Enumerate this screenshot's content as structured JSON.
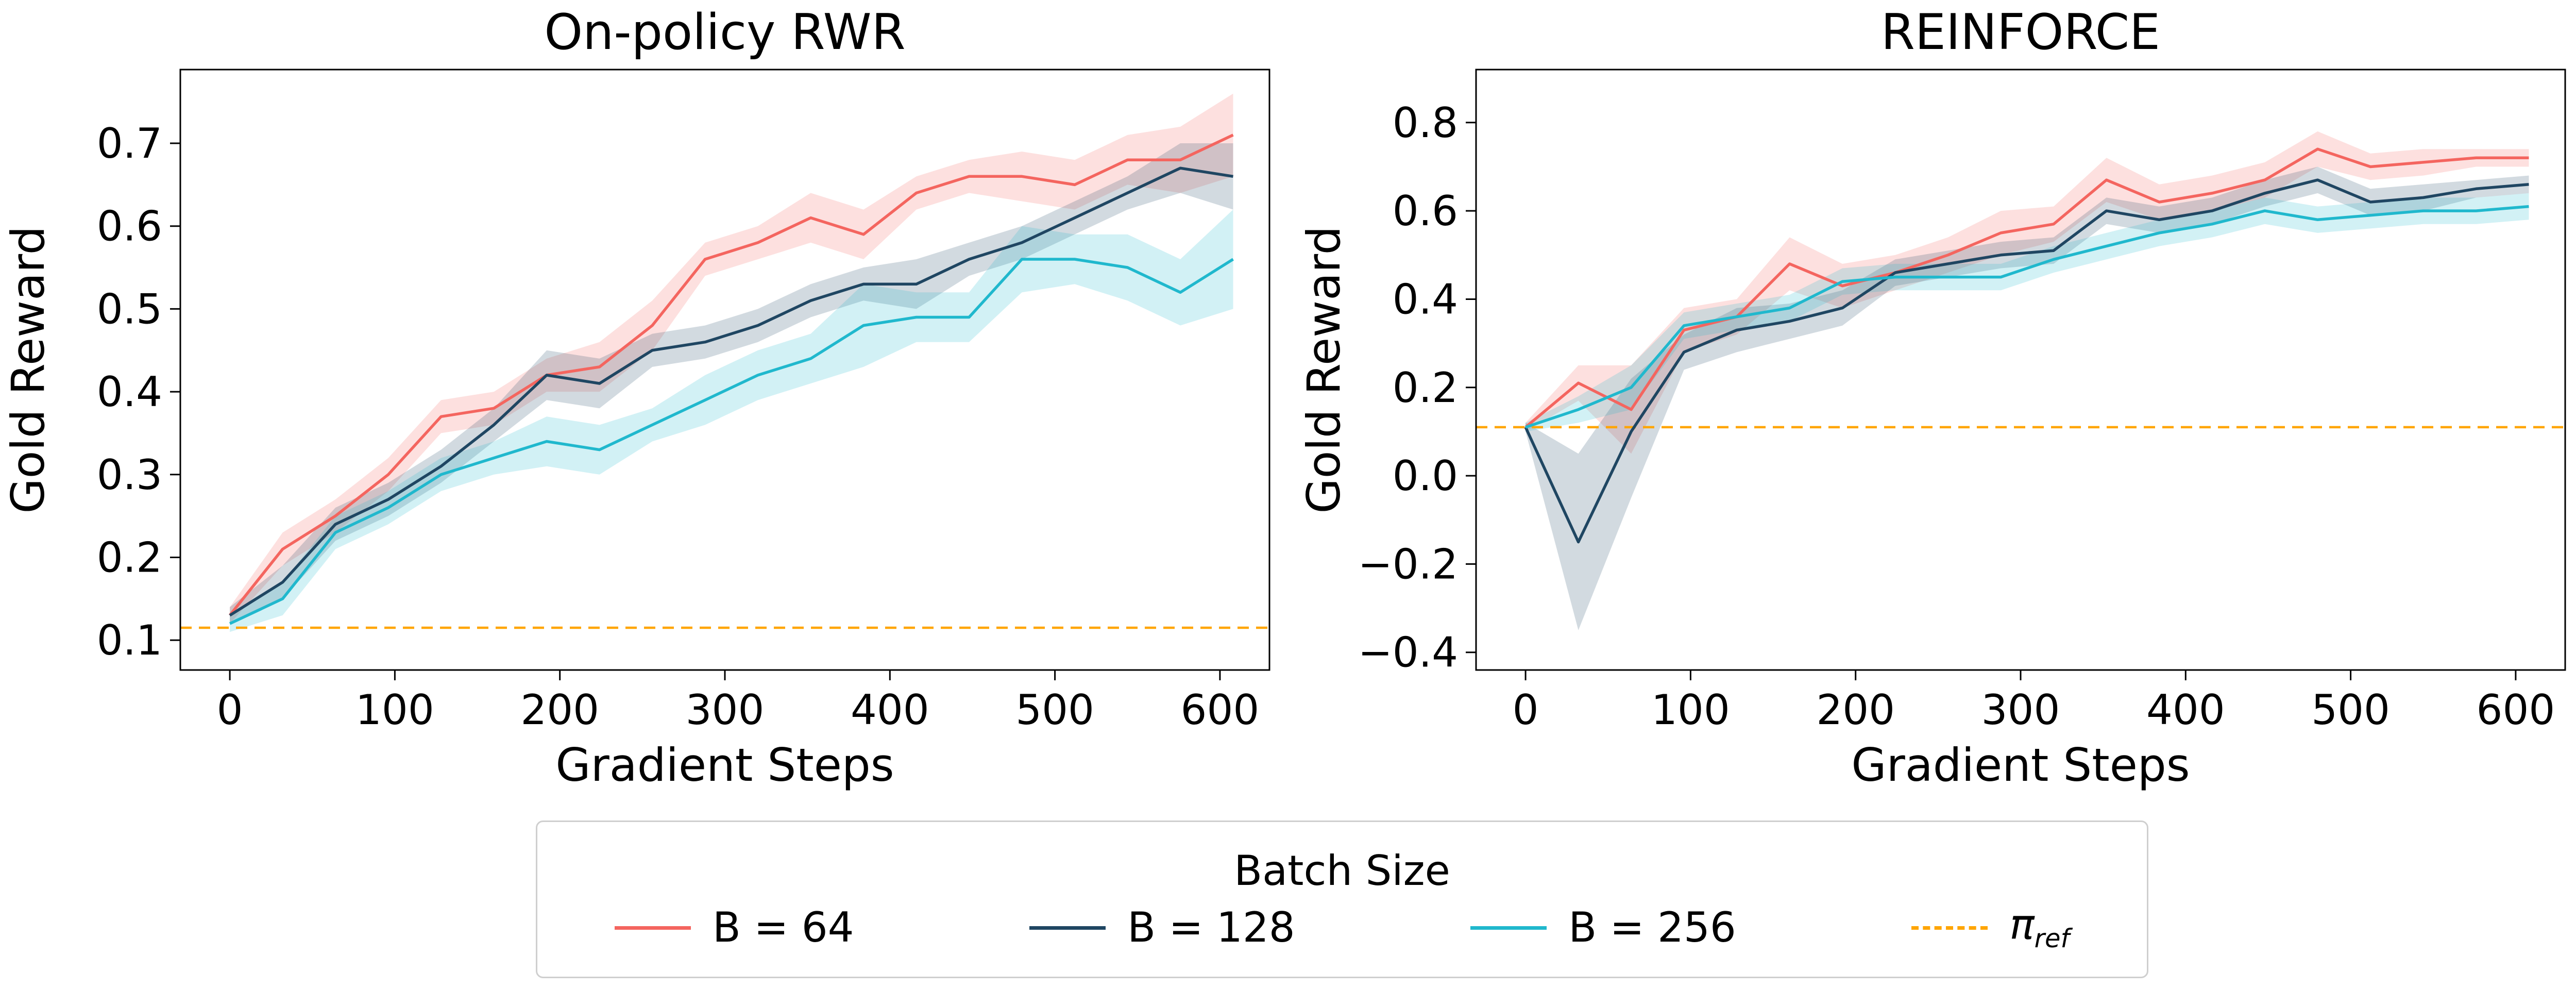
{
  "page": {
    "background": "#ffffff"
  },
  "legend": {
    "title": "Batch Size",
    "entries": [
      {
        "label": "B = 64",
        "color": "#f4655f",
        "style": "solid"
      },
      {
        "label": "B = 128",
        "color": "#1f4662",
        "style": "solid"
      },
      {
        "label": "B = 256",
        "color": "#20b8cd",
        "style": "solid"
      },
      {
        "label": "π_ref",
        "symbol": "π",
        "subscript": "ref",
        "color": "#FFA500",
        "style": "dashed"
      }
    ]
  },
  "chart_data": [
    {
      "type": "line",
      "id": "on-policy-rwr",
      "title": "On-policy RWR",
      "xlabel": "Gradient Steps",
      "ylabel": "Gold Reward",
      "xlim": [
        -30,
        630
      ],
      "ylim": [
        0.064,
        0.789
      ],
      "xticks": [
        0,
        100,
        200,
        300,
        400,
        500,
        600
      ],
      "xtick_labels": [
        "0",
        "100",
        "200",
        "300",
        "400",
        "500",
        "600"
      ],
      "yticks": [
        0.1,
        0.2,
        0.3,
        0.4,
        0.5,
        0.6,
        0.7
      ],
      "ytick_labels": [
        "0.1",
        "0.2",
        "0.3",
        "0.4",
        "0.5",
        "0.6",
        "0.7"
      ],
      "grid": false,
      "ref_line": {
        "y": 0.115,
        "color": "#FFA500",
        "style": "dashed",
        "label": "π_ref"
      },
      "x": [
        0,
        32,
        64,
        96,
        128,
        160,
        192,
        224,
        256,
        288,
        320,
        352,
        384,
        416,
        448,
        480,
        512,
        544,
        576,
        608
      ],
      "series": [
        {
          "name": "B = 64",
          "color": "#f4655f",
          "values": [
            0.13,
            0.21,
            0.25,
            0.3,
            0.37,
            0.38,
            0.42,
            0.43,
            0.48,
            0.56,
            0.58,
            0.61,
            0.59,
            0.64,
            0.66,
            0.66,
            0.65,
            0.68,
            0.68,
            0.71
          ],
          "lo": [
            0.12,
            0.19,
            0.23,
            0.28,
            0.35,
            0.36,
            0.4,
            0.4,
            0.45,
            0.54,
            0.56,
            0.58,
            0.56,
            0.62,
            0.64,
            0.63,
            0.62,
            0.65,
            0.64,
            0.66
          ],
          "hi": [
            0.14,
            0.23,
            0.27,
            0.32,
            0.39,
            0.4,
            0.44,
            0.46,
            0.51,
            0.58,
            0.6,
            0.64,
            0.62,
            0.66,
            0.68,
            0.69,
            0.68,
            0.71,
            0.72,
            0.76
          ]
        },
        {
          "name": "B = 128",
          "color": "#1f4662",
          "values": [
            0.13,
            0.17,
            0.24,
            0.27,
            0.31,
            0.36,
            0.42,
            0.41,
            0.45,
            0.46,
            0.48,
            0.51,
            0.53,
            0.53,
            0.56,
            0.58,
            0.61,
            0.64,
            0.67,
            0.66
          ],
          "lo": [
            0.12,
            0.15,
            0.22,
            0.25,
            0.29,
            0.34,
            0.39,
            0.38,
            0.43,
            0.44,
            0.46,
            0.49,
            0.51,
            0.5,
            0.54,
            0.56,
            0.59,
            0.62,
            0.64,
            0.62
          ],
          "hi": [
            0.14,
            0.19,
            0.26,
            0.29,
            0.33,
            0.38,
            0.45,
            0.44,
            0.47,
            0.48,
            0.5,
            0.53,
            0.55,
            0.56,
            0.58,
            0.6,
            0.63,
            0.66,
            0.7,
            0.7
          ]
        },
        {
          "name": "B = 256",
          "color": "#20b8cd",
          "values": [
            0.12,
            0.15,
            0.23,
            0.26,
            0.3,
            0.32,
            0.34,
            0.33,
            0.36,
            0.39,
            0.42,
            0.44,
            0.48,
            0.49,
            0.49,
            0.56,
            0.56,
            0.55,
            0.52,
            0.56
          ],
          "lo": [
            0.11,
            0.13,
            0.21,
            0.24,
            0.28,
            0.3,
            0.31,
            0.3,
            0.34,
            0.36,
            0.39,
            0.41,
            0.43,
            0.46,
            0.46,
            0.52,
            0.53,
            0.51,
            0.48,
            0.5
          ],
          "hi": [
            0.13,
            0.17,
            0.25,
            0.28,
            0.32,
            0.34,
            0.37,
            0.36,
            0.38,
            0.42,
            0.45,
            0.47,
            0.53,
            0.52,
            0.52,
            0.6,
            0.59,
            0.59,
            0.56,
            0.62
          ]
        }
      ]
    },
    {
      "type": "line",
      "id": "reinforce",
      "title": "REINFORCE",
      "xlabel": "Gradient Steps",
      "ylabel": "Gold Reward",
      "xlim": [
        -30,
        630
      ],
      "ylim": [
        -0.44,
        0.92
      ],
      "xticks": [
        0,
        100,
        200,
        300,
        400,
        500,
        600
      ],
      "xtick_labels": [
        "0",
        "100",
        "200",
        "300",
        "400",
        "500",
        "600"
      ],
      "yticks": [
        -0.4,
        -0.2,
        0.0,
        0.2,
        0.4,
        0.6,
        0.8
      ],
      "ytick_labels": [
        "−0.4",
        "−0.2",
        "0.0",
        "0.2",
        "0.4",
        "0.6",
        "0.8"
      ],
      "grid": false,
      "ref_line": {
        "y": 0.11,
        "color": "#FFA500",
        "style": "dashed",
        "label": "π_ref"
      },
      "x": [
        0,
        32,
        64,
        96,
        128,
        160,
        192,
        224,
        256,
        288,
        320,
        352,
        384,
        416,
        448,
        480,
        512,
        544,
        576,
        608
      ],
      "series": [
        {
          "name": "B = 64",
          "color": "#f4655f",
          "values": [
            0.11,
            0.21,
            0.15,
            0.33,
            0.36,
            0.48,
            0.43,
            0.46,
            0.5,
            0.55,
            0.57,
            0.67,
            0.62,
            0.64,
            0.67,
            0.74,
            0.7,
            0.71,
            0.72,
            0.72
          ],
          "lo": [
            0.1,
            0.17,
            0.05,
            0.28,
            0.32,
            0.42,
            0.38,
            0.42,
            0.46,
            0.5,
            0.53,
            0.62,
            0.58,
            0.6,
            0.63,
            0.7,
            0.67,
            0.68,
            0.7,
            0.7
          ],
          "hi": [
            0.12,
            0.25,
            0.25,
            0.38,
            0.4,
            0.54,
            0.48,
            0.5,
            0.54,
            0.6,
            0.61,
            0.72,
            0.66,
            0.68,
            0.71,
            0.78,
            0.73,
            0.74,
            0.74,
            0.74
          ]
        },
        {
          "name": "B = 128",
          "color": "#1f4662",
          "values": [
            0.11,
            -0.15,
            0.1,
            0.28,
            0.33,
            0.35,
            0.38,
            0.46,
            0.48,
            0.5,
            0.51,
            0.6,
            0.58,
            0.6,
            0.64,
            0.67,
            0.62,
            0.63,
            0.65,
            0.66
          ],
          "lo": [
            0.1,
            -0.35,
            -0.05,
            0.24,
            0.28,
            0.31,
            0.34,
            0.43,
            0.45,
            0.47,
            0.48,
            0.57,
            0.55,
            0.57,
            0.61,
            0.64,
            0.59,
            0.6,
            0.63,
            0.64
          ],
          "hi": [
            0.12,
            0.05,
            0.22,
            0.32,
            0.38,
            0.39,
            0.42,
            0.49,
            0.51,
            0.53,
            0.54,
            0.63,
            0.61,
            0.63,
            0.67,
            0.7,
            0.65,
            0.66,
            0.67,
            0.68
          ]
        },
        {
          "name": "B = 256",
          "color": "#20b8cd",
          "values": [
            0.11,
            0.15,
            0.2,
            0.34,
            0.36,
            0.38,
            0.44,
            0.45,
            0.45,
            0.45,
            0.49,
            0.52,
            0.55,
            0.57,
            0.6,
            0.58,
            0.59,
            0.6,
            0.6,
            0.61
          ],
          "lo": [
            0.1,
            0.12,
            0.15,
            0.31,
            0.33,
            0.35,
            0.41,
            0.42,
            0.42,
            0.42,
            0.46,
            0.49,
            0.52,
            0.54,
            0.57,
            0.55,
            0.56,
            0.57,
            0.57,
            0.58
          ],
          "hi": [
            0.12,
            0.18,
            0.25,
            0.37,
            0.39,
            0.41,
            0.47,
            0.48,
            0.48,
            0.48,
            0.52,
            0.55,
            0.58,
            0.6,
            0.63,
            0.61,
            0.62,
            0.63,
            0.63,
            0.64
          ]
        }
      ]
    }
  ]
}
